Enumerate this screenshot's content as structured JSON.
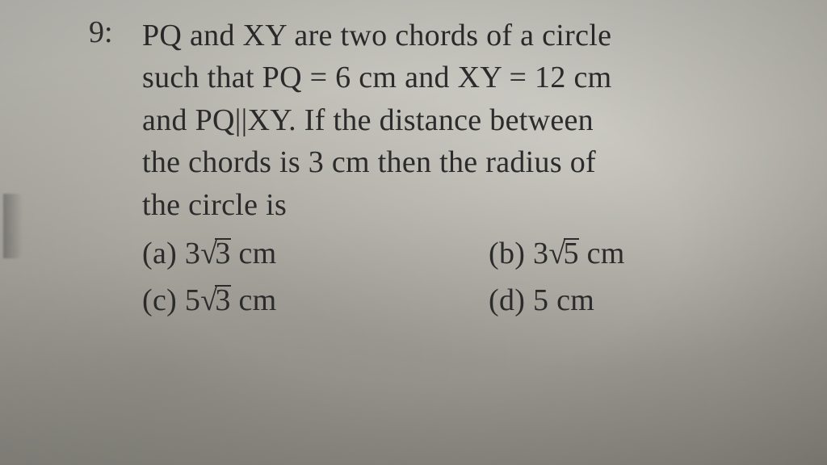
{
  "question": {
    "number": "9:",
    "line1": "PQ and XY are two chords of a circle",
    "line2": "such that PQ = 6 cm and XY = 12 cm",
    "line3": "and PQ||XY. If the distance between",
    "line4": "the chords is 3 cm then the radius of",
    "line5": "the circle is"
  },
  "options": {
    "a": {
      "label": "(a)",
      "coef": "3",
      "radicand": "3",
      "unit": " cm"
    },
    "b": {
      "label": "(b)",
      "coef": "3",
      "radicand": "5",
      "unit": " cm"
    },
    "c": {
      "label": "(c)",
      "coef": "5",
      "radicand": "3",
      "unit": " cm"
    },
    "d": {
      "label": "(d)",
      "plain": " 5 cm"
    }
  },
  "style": {
    "text_color": "#2b2b2b",
    "bg_gradient_from": "#c8c7c0",
    "bg_gradient_to": "#8a8880",
    "font_size_pt": 38
  }
}
